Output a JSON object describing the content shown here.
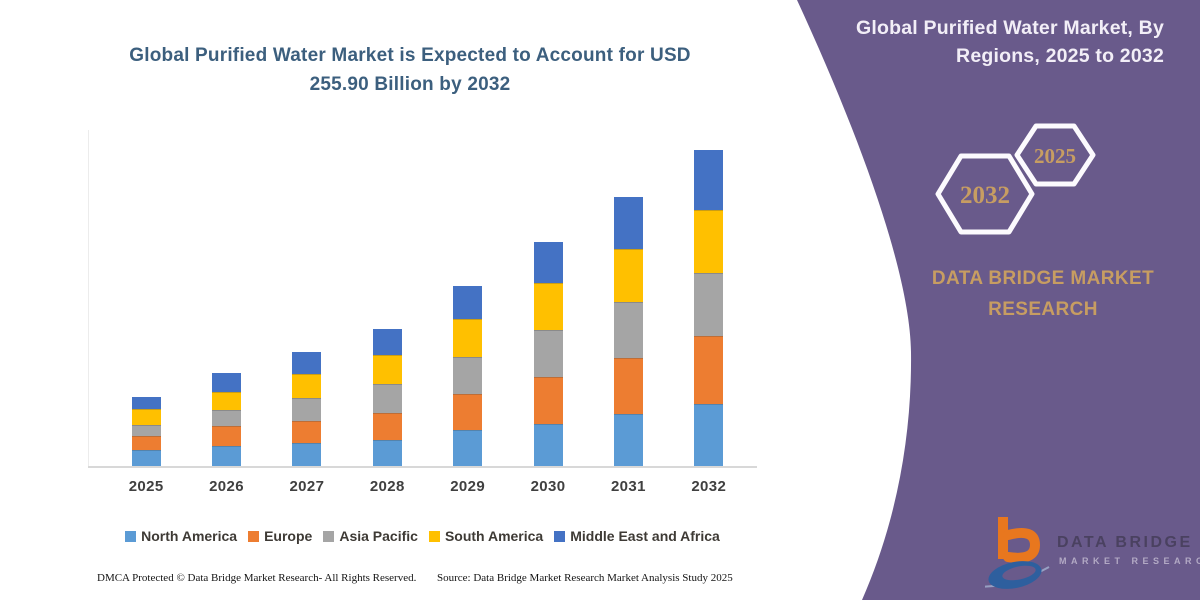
{
  "headline": {
    "lines": [
      "Global Purified Water Market is Expected to Account for USD",
      "255.90 Billion by 2032"
    ]
  },
  "chart_data": {
    "type": "bar",
    "stacked": true,
    "title": "Global Purified Water Market is Expected to Account for USD 255.90 Billion by 2032",
    "xlabel": "",
    "ylabel": "",
    "value_unit": "USD Billion",
    "y_axis": {
      "visible": false,
      "min": 0,
      "max_estimate": 270
    },
    "legend_position": "bottom",
    "categories": [
      "2025",
      "2026",
      "2027",
      "2028",
      "2029",
      "2030",
      "2031",
      "2032"
    ],
    "series_order": "bottom-to-top",
    "series": [
      {
        "name": "North America",
        "color": "#5B9BD5",
        "values": [
          12.3,
          15.8,
          17.7,
          20.4,
          29.1,
          33.5,
          41.7,
          49.9
        ]
      },
      {
        "name": "Europe",
        "color": "#ED7D31",
        "values": [
          10.9,
          15.0,
          17.7,
          21.8,
          28.3,
          37.6,
          45.0,
          54.8
        ]
      },
      {
        "name": "Asia Pacific",
        "color": "#A5A5A5",
        "values": [
          8.2,
          12.8,
          17.7,
          22.3,
          29.6,
          37.8,
          45.0,
          50.7
        ]
      },
      {
        "name": "South America",
        "color": "#FFC000",
        "values": [
          11.7,
          14.2,
          19.0,
          23.1,
          30.6,
          37.6,
          42.8,
          51.5
        ]
      },
      {
        "name": "Middle East and Africa",
        "color": "#4472C4",
        "values": [
          10.1,
          15.5,
          18.2,
          21.8,
          26.9,
          34.1,
          43.1,
          49.0
        ]
      }
    ],
    "totals_estimate": [
      53.2,
      73.3,
      90.3,
      109.4,
      144.5,
      180.6,
      217.6,
      255.9
    ],
    "note": "No y-axis shown in source image; segment values estimated from bar heights, scaled so the 2032 total equals the stated USD 255.90 billion."
  },
  "footer": {
    "dmca": "DMCA Protected © Data Bridge Market Research-  All Rights Reserved.",
    "source": "Source: Data Bridge Market Research  Market Analysis Study 2025"
  },
  "side_panel": {
    "title_lines": [
      "Global Purified Water Market, By",
      "Regions, 2025 to 2032"
    ],
    "hexagon_labels": [
      "2032",
      "2025"
    ],
    "brand_lines": [
      "DATA BRIDGE MARKET",
      "RESEARCH"
    ],
    "logo_text_top": "DATA BRIDGE",
    "logo_text_bottom": "MARKET RESEARCH",
    "colors": {
      "panel": "#695A8B",
      "gold": "#C79D62",
      "white_text": "#F2EEF7",
      "headline_blue": "#3C5F7E"
    }
  }
}
